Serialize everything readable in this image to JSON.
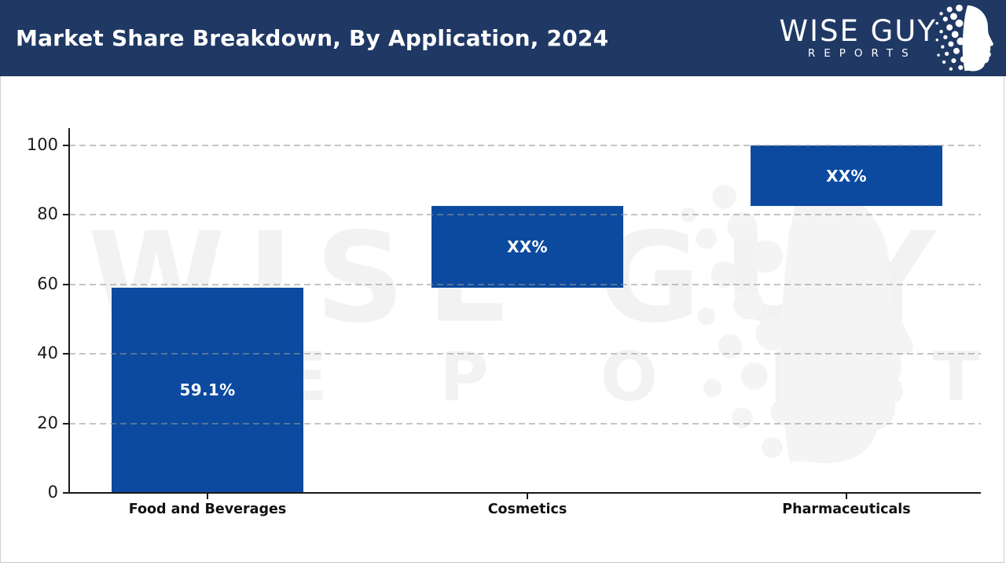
{
  "header": {
    "title": "Market Share Breakdown, By Application, 2024",
    "logo": {
      "line1": "WISE GUY",
      "line2": "REPORTS"
    }
  },
  "watermark": {
    "line1": "WISE GUY",
    "line2": "R E P O R T S"
  },
  "chart_data": {
    "type": "bar",
    "subtype": "waterfall",
    "title": "Market Share Breakdown, By Application, 2024",
    "categories": [
      "Food and Beverages",
      "Cosmetics",
      "Pharmaceuticals"
    ],
    "segments": [
      {
        "category": "Food and Beverages",
        "start": 0,
        "end": 59.1,
        "label": "59.1%"
      },
      {
        "category": "Cosmetics",
        "start": 59.1,
        "end": 82.5,
        "label": "XX%"
      },
      {
        "category": "Pharmaceuticals",
        "start": 82.5,
        "end": 100,
        "label": "XX%"
      }
    ],
    "yticks": [
      0,
      20,
      40,
      60,
      80,
      100
    ],
    "ylim": [
      0,
      100
    ],
    "xlabel": "",
    "ylabel": "",
    "grid": "horizontal-dashed-over-bars",
    "legend": "none",
    "colors": {
      "bar": "#0b4a9f",
      "header_band": "#1f3864",
      "bar_label_text": "#ffffff",
      "axis": "#1a1a1a",
      "gridline": "#d3d3d3"
    }
  }
}
